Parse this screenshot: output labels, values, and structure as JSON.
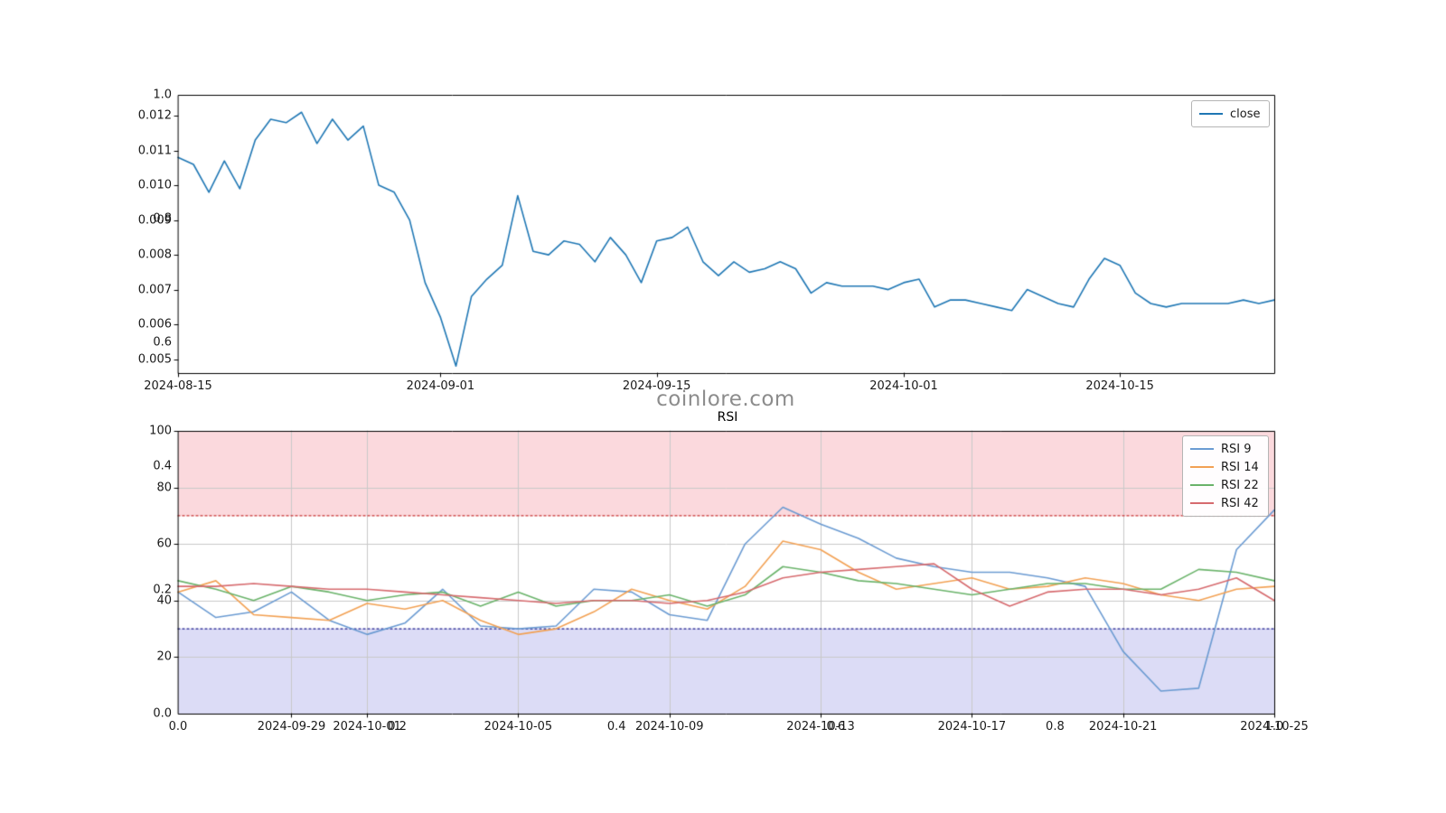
{
  "watermark": "coinlore.com",
  "ghost_axis": {
    "y_labels": [
      "1.0",
      "0.8",
      "0.6",
      "0.4",
      "0.2",
      "0.0"
    ],
    "x_labels": [
      "0.0",
      "0.2",
      "0.4",
      "0.6",
      "0.8",
      "1.0"
    ]
  },
  "chart_data": [
    {
      "type": "line",
      "title": "",
      "xlabel": "",
      "ylabel": "",
      "x_range": [
        "2024-08-15",
        "2024-10-25"
      ],
      "ylim": [
        0.0046,
        0.0126
      ],
      "grid": false,
      "legend": {
        "position": "upper right"
      },
      "y_ticks": [
        {
          "value": 0.012,
          "label": "0.012"
        },
        {
          "value": 0.011,
          "label": "0.011"
        },
        {
          "value": 0.01,
          "label": "0.010"
        },
        {
          "value": 0.009,
          "label": "0.009"
        },
        {
          "value": 0.008,
          "label": "0.008"
        },
        {
          "value": 0.007,
          "label": "0.007"
        },
        {
          "value": 0.006,
          "label": "0.006"
        },
        {
          "value": 0.005,
          "label": "0.005"
        }
      ],
      "x_tick_labels": [
        {
          "label": "2024-08-15",
          "index": 0
        },
        {
          "label": "2024-09-01",
          "index": 17
        },
        {
          "label": "2024-09-15",
          "index": 31
        },
        {
          "label": "2024-10-01",
          "index": 47
        },
        {
          "label": "2024-10-15",
          "index": 61
        }
      ],
      "series": [
        {
          "name": "close",
          "color": "#1f77b4",
          "values": [
            0.0108,
            0.0106,
            0.0098,
            0.0107,
            0.0099,
            0.0113,
            0.0119,
            0.0118,
            0.0121,
            0.0112,
            0.0119,
            0.0113,
            0.0117,
            0.01,
            0.0098,
            0.009,
            0.0072,
            0.0062,
            0.0048,
            0.0068,
            0.0073,
            0.0077,
            0.0097,
            0.0081,
            0.008,
            0.0084,
            0.0083,
            0.0078,
            0.0085,
            0.008,
            0.0072,
            0.0084,
            0.0085,
            0.0088,
            0.0078,
            0.0074,
            0.0078,
            0.0075,
            0.0076,
            0.0078,
            0.0076,
            0.0069,
            0.0072,
            0.0071,
            0.0071,
            0.0071,
            0.007,
            0.0072,
            0.0073,
            0.0065,
            0.0067,
            0.0067,
            0.0066,
            0.0065,
            0.0064,
            0.007,
            0.0068,
            0.0066,
            0.0065,
            0.0073,
            0.0079,
            0.0077,
            0.0069,
            0.0066,
            0.0065,
            0.0066,
            0.0066,
            0.0066,
            0.0066,
            0.0067,
            0.0066,
            0.0067
          ]
        }
      ]
    },
    {
      "type": "line",
      "title": "RSI",
      "xlabel": "",
      "ylabel": "",
      "x_range": [
        "2024-09-26",
        "2024-10-25"
      ],
      "ylim": [
        0,
        100
      ],
      "grid": true,
      "legend": {
        "position": "upper right"
      },
      "overbought_level": 70,
      "oversold_level": 30,
      "bands": [
        {
          "from": 70,
          "to": 100,
          "color": "#fbd9dd"
        },
        {
          "from": 0,
          "to": 30,
          "color": "#dcdcf6"
        }
      ],
      "hlines": [
        {
          "value": 70,
          "color": "#c83232",
          "style": "dotted"
        },
        {
          "value": 30,
          "color": "#1a1a8c",
          "style": "dotted"
        }
      ],
      "y_ticks": [
        {
          "value": 100,
          "label": "100"
        },
        {
          "value": 80,
          "label": "80"
        },
        {
          "value": 60,
          "label": "60"
        },
        {
          "value": 40,
          "label": "40"
        },
        {
          "value": 20,
          "label": "20"
        }
      ],
      "x_tick_labels": [
        {
          "label": "2024-09-29",
          "index": 3
        },
        {
          "label": "2024-10-01",
          "index": 5
        },
        {
          "label": "2024-10-05",
          "index": 9
        },
        {
          "label": "2024-10-09",
          "index": 13
        },
        {
          "label": "2024-10-13",
          "index": 17
        },
        {
          "label": "2024-10-17",
          "index": 21
        },
        {
          "label": "2024-10-21",
          "index": 25
        },
        {
          "label": "2024-10-25",
          "index": 29
        }
      ],
      "series": [
        {
          "name": "RSI 9",
          "color": "#6b9bd2",
          "values": [
            43,
            34,
            36,
            43,
            33,
            28,
            32,
            44,
            31,
            30,
            31,
            44,
            43,
            35,
            33,
            60,
            73,
            67,
            62,
            55,
            52,
            50,
            50,
            48,
            45,
            22,
            8,
            9,
            58,
            72
          ]
        },
        {
          "name": "RSI 14",
          "color": "#f2a154",
          "values": [
            43,
            47,
            35,
            34,
            33,
            39,
            37,
            40,
            33,
            28,
            30,
            36,
            44,
            40,
            37,
            45,
            61,
            58,
            50,
            44,
            46,
            48,
            44,
            45,
            48,
            46,
            42,
            40,
            44,
            45
          ]
        },
        {
          "name": "RSI 22",
          "color": "#6ab36a",
          "values": [
            47,
            44,
            40,
            45,
            43,
            40,
            42,
            43,
            38,
            43,
            38,
            40,
            40,
            42,
            38,
            42,
            52,
            50,
            47,
            46,
            44,
            42,
            44,
            46,
            46,
            44,
            44,
            51,
            50,
            47
          ]
        },
        {
          "name": "RSI 42",
          "color": "#d66a6e",
          "values": [
            45,
            45,
            46,
            45,
            44,
            44,
            43,
            42,
            41,
            40,
            39,
            40,
            40,
            39,
            40,
            43,
            48,
            50,
            51,
            52,
            53,
            44,
            38,
            43,
            44,
            44,
            42,
            44,
            48,
            40
          ]
        }
      ]
    }
  ]
}
